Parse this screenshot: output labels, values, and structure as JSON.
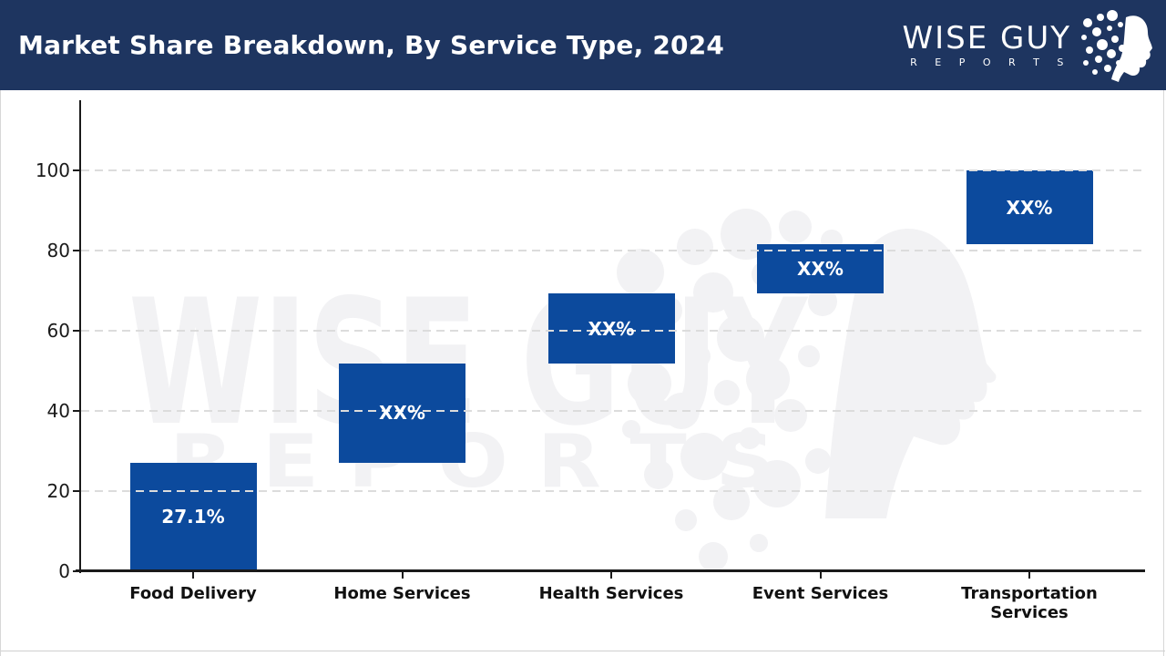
{
  "header": {
    "title": "Market Share Breakdown, By Service Type, 2024",
    "bg_color": "#1e3560",
    "logo": {
      "line1": "WISE GUY",
      "line2": "R E P O R T S"
    }
  },
  "watermark": {
    "line1": "WISE GUY",
    "line2": "R E P O R T S"
  },
  "chart_data": {
    "type": "bar",
    "subtype": "waterfall",
    "title": "Market Share Breakdown, By Service Type, 2024",
    "categories": [
      "Food Delivery",
      "Home Services",
      "Health Services",
      "Event Services",
      "Transportation Services"
    ],
    "series": [
      {
        "category": "Food Delivery",
        "start": 0,
        "end": 27.1,
        "label": "27.1%"
      },
      {
        "category": "Home Services",
        "start": 27.1,
        "end": 51.8,
        "label": "XX%"
      },
      {
        "category": "Health Services",
        "start": 51.8,
        "end": 69.3,
        "label": "XX%"
      },
      {
        "category": "Event Services",
        "start": 69.3,
        "end": 81.5,
        "label": "XX%"
      },
      {
        "category": "Transportation Services",
        "start": 81.5,
        "end": 100,
        "label": "XX%"
      }
    ],
    "ylim": [
      0,
      100
    ],
    "yticks": [
      0,
      20,
      40,
      60,
      80,
      100
    ],
    "xlabel": "",
    "ylabel": "",
    "grid": "horizontal-dashed",
    "legend": "none",
    "colors": {
      "bar": "#0c4a9d",
      "bar_label": "#ffffff",
      "axis": "#1a1a1a",
      "gridline": "#dcdcdc",
      "tick_label": "#1a1a1a",
      "category_label": "#111111",
      "header_bg": "#1e3560"
    }
  }
}
